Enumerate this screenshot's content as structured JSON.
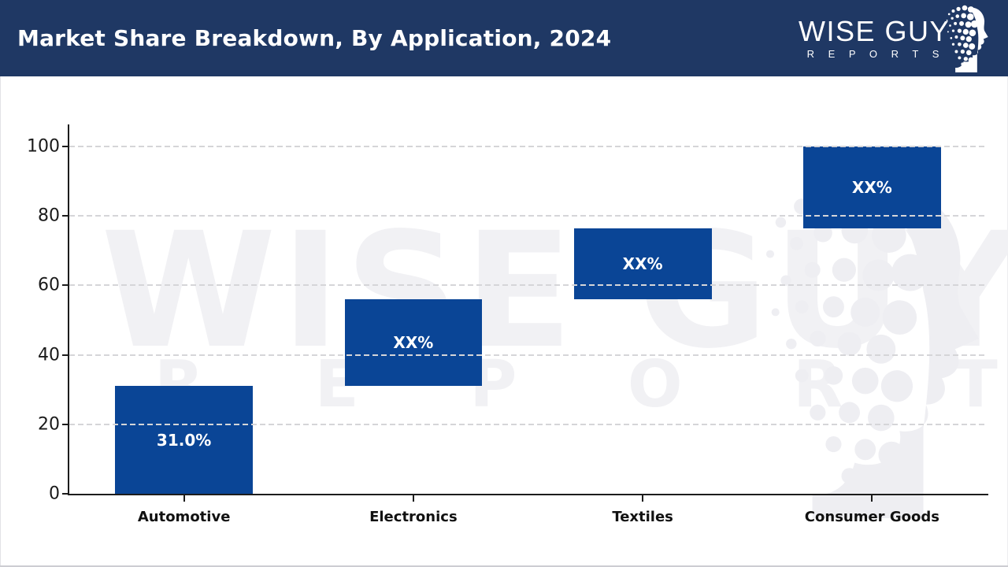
{
  "header": {
    "title": "Market Share Breakdown, By Application, 2024"
  },
  "logo": {
    "line1": "WISE GUY",
    "line2": "R E P O R T S"
  },
  "watermark": {
    "line1": "WISE GUY",
    "line2": "R E P O R T S"
  },
  "chart_data": {
    "type": "bar",
    "subtype": "waterfall",
    "title": "Market Share Breakdown, By Application, 2024",
    "categories": [
      "Automotive",
      "Electronics",
      "Textiles",
      "Consumer Goods"
    ],
    "segments": [
      {
        "category": "Automotive",
        "start": 0,
        "end": 31,
        "label": "31.0%"
      },
      {
        "category": "Electronics",
        "start": 31,
        "end": 56,
        "label": "XX%"
      },
      {
        "category": "Textiles",
        "start": 56,
        "end": 76.5,
        "label": "XX%"
      },
      {
        "category": "Consumer Goods",
        "start": 76.5,
        "end": 100,
        "label": "XX%"
      }
    ],
    "yticks": [
      0,
      20,
      40,
      60,
      80,
      100
    ],
    "ylim": [
      0,
      105.85
    ],
    "xlabel": "",
    "ylabel": "",
    "grid": "dashed-horizontal-over-bars",
    "legend": "none",
    "colors": {
      "bar": "#0a4596",
      "bar_label": "#ffffff",
      "header_bg": "#1f3864",
      "gridline": "#d5d5d8",
      "axis": "#1c1c1c",
      "watermark": "#f1f1f4"
    }
  }
}
